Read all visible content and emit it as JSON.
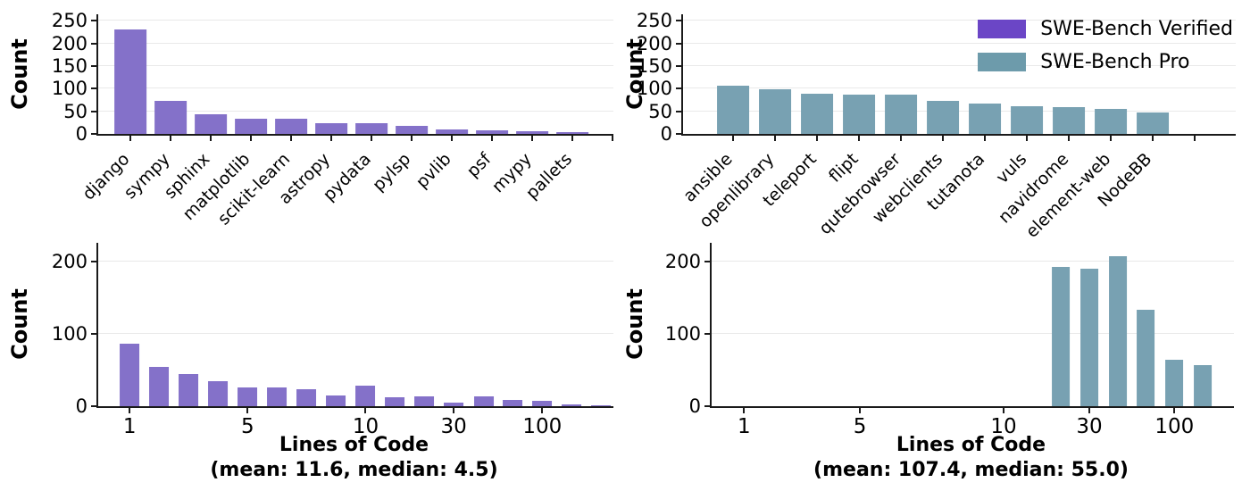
{
  "legend": {
    "items": [
      {
        "label": "SWE-Bench Verified",
        "color": "#6b46c6"
      },
      {
        "label": "SWE-Bench Pro",
        "color": "#6d9bab"
      }
    ]
  },
  "chart_data": [
    {
      "id": "verified-repo-counts",
      "type": "bar",
      "series_label": "SWE-Bench Verified",
      "ylabel": "Count",
      "yticks": [
        0,
        50,
        100,
        150,
        200,
        250
      ],
      "ymax": 264,
      "grid": true,
      "bar_color": "#8471c9",
      "categories": [
        "django",
        "sympy",
        "sphinx",
        "matplotlib",
        "scikit-learn",
        "astropy",
        "pydata",
        "pylsp",
        "pvlib",
        "psf",
        "mypy",
        "pallets"
      ],
      "values": [
        230,
        73,
        43,
        34,
        34,
        23,
        23,
        18,
        10,
        8,
        5,
        3
      ],
      "layout": {
        "x_first": 6.2,
        "x_pitch": 7.8,
        "bar_w": 6.2,
        "slots": 13
      }
    },
    {
      "id": "pro-repo-counts",
      "type": "bar",
      "series_label": "SWE-Bench Pro",
      "ylabel": "Count",
      "yticks": [
        0,
        50,
        100,
        150,
        200,
        250
      ],
      "ymax": 264,
      "grid": true,
      "bar_color": "#78a1b2",
      "categories": [
        "ansible",
        "openlibrary",
        "teleport",
        "flipt",
        "qutebrowser",
        "webclients",
        "tutanota",
        "vuls",
        "navidrome",
        "element-web",
        "NodeBB"
      ],
      "values": [
        106,
        99,
        88,
        87,
        86,
        72,
        67,
        62,
        59,
        55,
        48
      ],
      "layout": {
        "x_first": 9.0,
        "x_pitch": 7.6,
        "bar_w": 5.8,
        "slots": 12
      }
    },
    {
      "id": "verified-loc-histogram",
      "type": "bar",
      "series_label": "SWE-Bench Verified",
      "xlabel": "Lines of Code",
      "subtitle": "(mean: 11.6, median: 4.5)",
      "ylabel": "Count",
      "yticks": [
        0,
        100,
        200
      ],
      "ymax": 226,
      "grid": true,
      "xscale": "log",
      "bar_color": "#8471c9",
      "values": [
        87,
        54,
        44,
        35,
        26,
        26,
        23,
        15,
        28,
        12,
        14,
        5,
        13,
        9,
        7,
        2,
        1
      ],
      "xticks": [
        {
          "label": "1",
          "frac": 6.1
        },
        {
          "label": "5",
          "frac": 29.0
        },
        {
          "label": "10",
          "frac": 51.9
        },
        {
          "label": "30",
          "frac": 69.0
        },
        {
          "label": "100",
          "frac": 86.2
        }
      ],
      "layout": {
        "bar_w": 3.8,
        "bar_fracs": [
          6.1,
          11.8,
          17.5,
          23.2,
          29.0,
          34.7,
          40.4,
          46.1,
          51.9,
          57.6,
          63.3,
          69.0,
          74.8,
          80.5,
          86.2,
          91.9,
          97.6
        ]
      }
    },
    {
      "id": "pro-loc-histogram",
      "type": "bar",
      "series_label": "SWE-Bench Pro",
      "xlabel": "Lines of Code",
      "subtitle": "(mean: 107.4, median: 55.0)",
      "ylabel": "Count",
      "yticks": [
        0,
        100,
        200
      ],
      "ymax": 226,
      "grid": true,
      "xscale": "log",
      "bar_color": "#78a1b2",
      "values": [
        193,
        190,
        207,
        134,
        64,
        57
      ],
      "xticks": [
        {
          "label": "1",
          "frac": 6.2
        },
        {
          "label": "5",
          "frac": 28.4
        },
        {
          "label": "10",
          "frac": 55.9
        },
        {
          "label": "30",
          "frac": 72.3
        },
        {
          "label": "100",
          "frac": 88.6
        }
      ],
      "layout": {
        "bar_w": 3.4,
        "bar_fracs": [
          66.8,
          72.3,
          77.8,
          83.1,
          88.6,
          94.0
        ]
      }
    }
  ]
}
